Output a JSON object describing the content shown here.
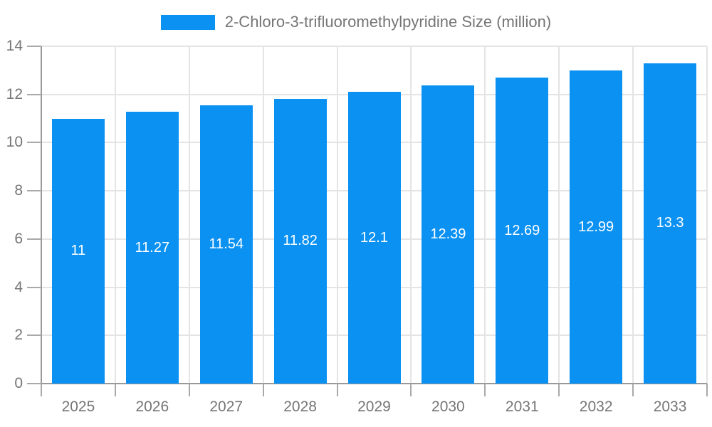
{
  "chart_data": {
    "type": "bar",
    "title": "",
    "series_name": "2-Chloro-3-trifluoromethylpyridine Size (million)",
    "categories": [
      "2025",
      "2026",
      "2027",
      "2028",
      "2029",
      "2030",
      "2031",
      "2032",
      "2033"
    ],
    "values": [
      11,
      11.27,
      11.54,
      11.82,
      12.1,
      12.39,
      12.69,
      12.99,
      13.3
    ],
    "xlabel": "",
    "ylabel": "",
    "ylim": [
      0,
      14
    ],
    "ytick_step": 2,
    "grid": true,
    "legend_position": "top",
    "colors": {
      "bar": "#0a91f2",
      "grid": "#e4e4e4",
      "axis": "#999999",
      "tick": "#a9a9a9",
      "axis_label": "#757575",
      "value_label": "#ffffff",
      "background": "#ffffff"
    }
  }
}
